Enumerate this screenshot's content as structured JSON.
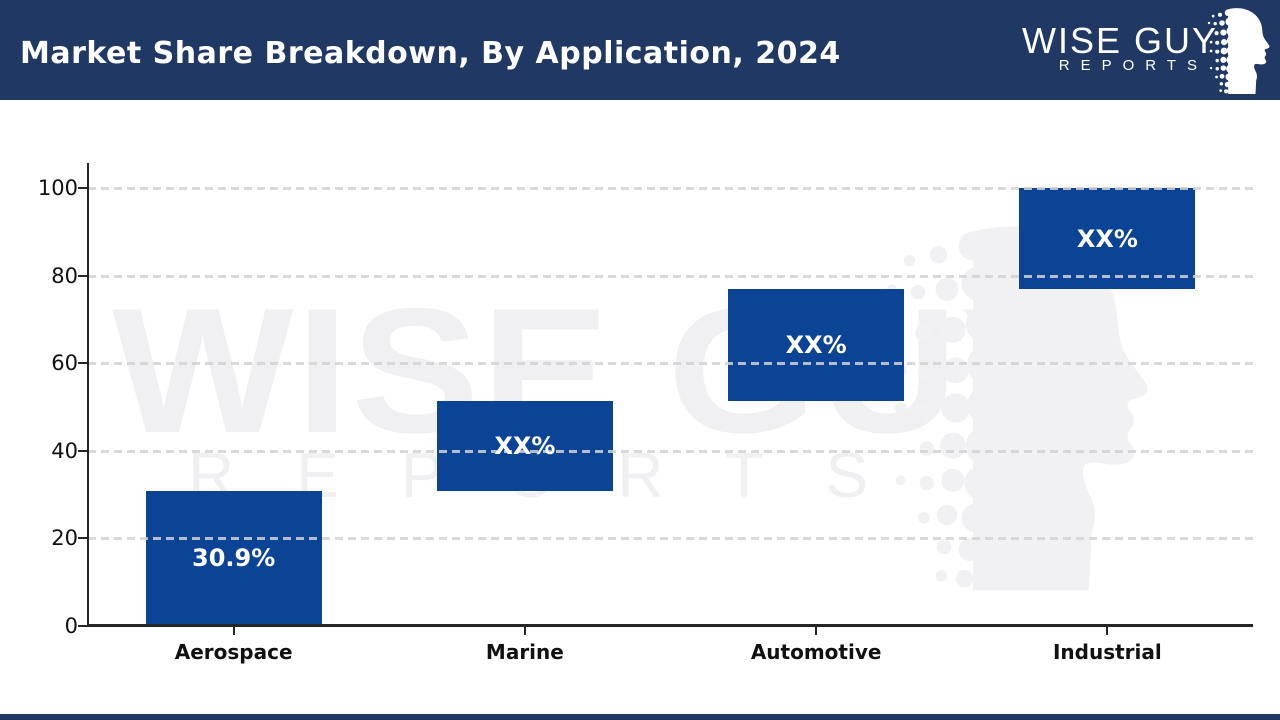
{
  "header": {
    "title": "Market Share Breakdown, By Application, 2024",
    "logo": {
      "line1": "WISE GUY",
      "line2": "REPORTS"
    }
  },
  "watermark": {
    "line1": "WISE GUY",
    "line2": "REPORTS"
  },
  "chart_data": {
    "type": "bar",
    "subtype": "floating-segment-waterfall",
    "title": "Market Share Breakdown, By Application, 2024",
    "categories": [
      "Aerospace",
      "Marine",
      "Automotive",
      "Industrial"
    ],
    "series": [
      {
        "name": "Market Share",
        "segments": [
          {
            "category": "Aerospace",
            "start": 0,
            "end": 30.9,
            "label": "30.9%"
          },
          {
            "category": "Marine",
            "start": 30.9,
            "end": 51.5,
            "label": "XX%"
          },
          {
            "category": "Automotive",
            "start": 51.5,
            "end": 77.0,
            "label": "XX%"
          },
          {
            "category": "Industrial",
            "start": 77.0,
            "end": 100,
            "label": "XX%"
          }
        ]
      }
    ],
    "xlabel": "",
    "ylabel": "",
    "y_ticks": [
      0,
      20,
      40,
      60,
      80,
      100
    ],
    "ylim": [
      0,
      105.8
    ],
    "grid": "horizontal-dashed, drawn above bars",
    "legend": "none"
  },
  "colors": {
    "header_bg": "#203864",
    "footer_bg": "#203864",
    "bar": "#0b4495",
    "bar_label": "#ffffff",
    "grid": "#d2d2d2",
    "axis": "#262626",
    "watermark": "#f0f0f2",
    "page_bg": "#ffffff"
  }
}
